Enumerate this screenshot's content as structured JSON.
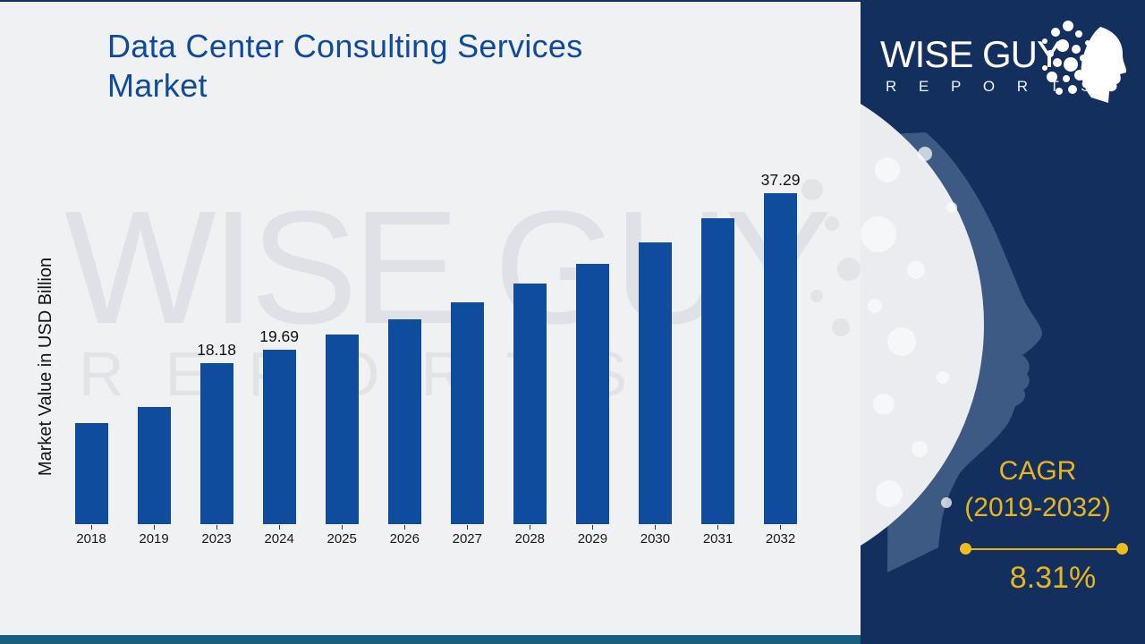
{
  "page": {
    "title_line1": "Data Center Consulting Services",
    "title_line2": "Market",
    "background_color": "#f0f1f3",
    "top_bar_color": "#132f5e",
    "bottom_bar_color": "#1b5f7e"
  },
  "brand": {
    "wordmark": "WISE GUY",
    "subtitle": "R E P O R T S",
    "panel_color": "#132f5e",
    "logo_icon": "dotted-face-profile-icon"
  },
  "watermark": {
    "line1": "WISE GUY",
    "line2": "REPORTS"
  },
  "cagr": {
    "heading": "CAGR",
    "range": "(2019-2032)",
    "value": "8.31%",
    "accent_color": "#e8b520"
  },
  "chart_data": {
    "type": "bar",
    "title": "Data Center Consulting Services Market",
    "xlabel": "",
    "ylabel": "Market Value in USD Billion",
    "categories": [
      "2018",
      "2019",
      "2023",
      "2024",
      "2025",
      "2026",
      "2027",
      "2028",
      "2029",
      "2030",
      "2031",
      "2032"
    ],
    "values": [
      11.4,
      13.2,
      18.18,
      19.69,
      21.33,
      23.1,
      25.02,
      27.1,
      29.35,
      31.79,
      34.43,
      37.29
    ],
    "value_labels": [
      "",
      "",
      "18.18",
      "19.69",
      "",
      "",
      "",
      "",
      "",
      "",
      "",
      "37.29"
    ],
    "bar_color": "#0f4c9e",
    "ylim": [
      0,
      40
    ],
    "grid": false,
    "legend": "none"
  }
}
